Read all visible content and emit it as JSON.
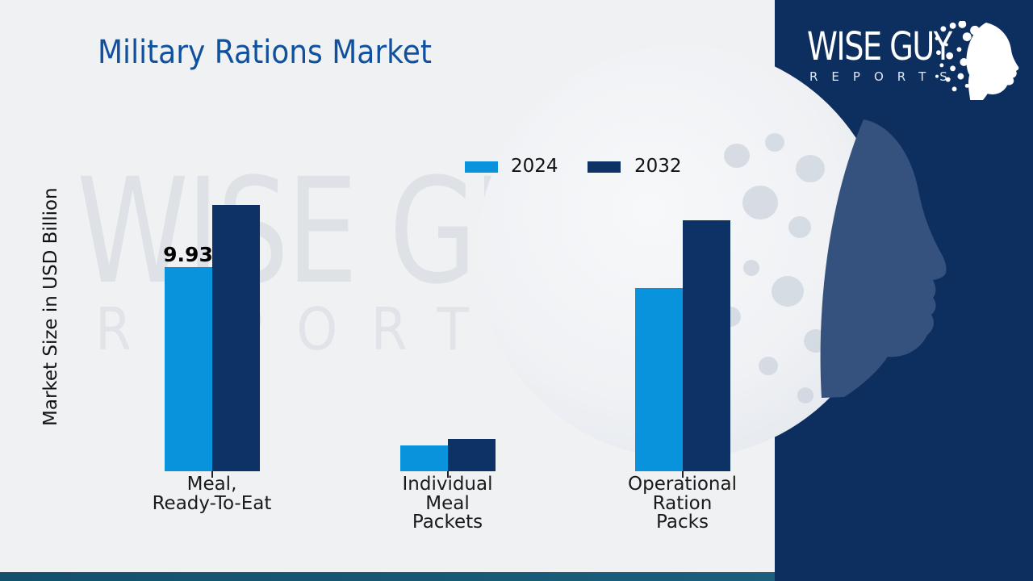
{
  "title": "Military Rations Market",
  "watermark": {
    "line1": "WISE GUY",
    "line2": "REPORTS"
  },
  "logo": {
    "line1": "WISE GUY",
    "line2": "REPORTS"
  },
  "colors": {
    "title_blue": "#10519f",
    "series_2024": "#0993dc",
    "series_2032": "#0d3266",
    "navy_corner": "#0c2f60",
    "teal_strip": "#1e6483",
    "background": "#f0f1f2",
    "watermark_gray": "#d4d9e0"
  },
  "chart_data": {
    "type": "bar",
    "title": "Military Rations Market",
    "xlabel": "",
    "ylabel": "Market Size in USD Billion",
    "ylim": [
      0,
      14
    ],
    "grid": false,
    "legend_position": "top-center",
    "categories": [
      {
        "lines": [
          "Meal,",
          "Ready-To-Eat"
        ]
      },
      {
        "lines": [
          "Individual",
          "Meal",
          "Packets"
        ]
      },
      {
        "lines": [
          "Operational",
          "Ration",
          "Packs"
        ]
      }
    ],
    "series": [
      {
        "name": "2024",
        "color": "#0993dc",
        "values": [
          9.93,
          1.26,
          8.91
        ]
      },
      {
        "name": "2032",
        "color": "#0d3266",
        "values": [
          12.95,
          1.57,
          12.21
        ]
      }
    ],
    "value_labels": [
      {
        "series_index": 0,
        "category_index": 0,
        "text": "9.93"
      }
    ]
  }
}
